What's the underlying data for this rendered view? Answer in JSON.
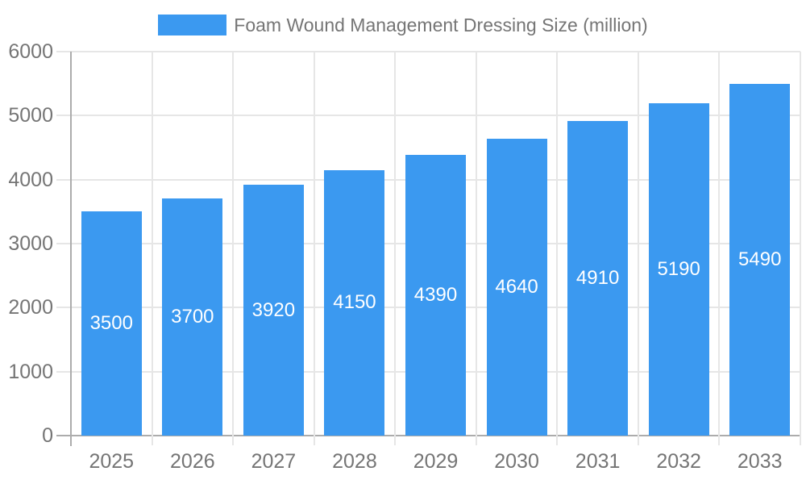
{
  "chart_data": {
    "type": "bar",
    "title": "Foam Wound Management Dressing Size (million)",
    "categories": [
      "2025",
      "2026",
      "2027",
      "2028",
      "2029",
      "2030",
      "2031",
      "2032",
      "2033"
    ],
    "values": [
      3500,
      3700,
      3920,
      4150,
      4390,
      4640,
      4910,
      5190,
      5490
    ],
    "bar_value_labels": [
      "3500",
      "3700",
      "3920",
      "4150",
      "4390",
      "4640",
      "4910",
      "5190",
      "5490"
    ],
    "xlabel": "",
    "ylabel": "",
    "ylim": [
      0,
      6000
    ],
    "yticks": [
      0,
      1000,
      2000,
      3000,
      4000,
      5000,
      6000
    ],
    "ytick_labels": [
      "0",
      "1000",
      "2000",
      "3000",
      "4000",
      "5000",
      "6000"
    ],
    "grid": true,
    "legend_position": "top",
    "bar_labels_inside": true,
    "colors": {
      "bar": "#3B99F0",
      "bar_label_text": "#FFFFFF",
      "axis_text": "#757575",
      "grid_line": "#E6E6E6",
      "axis_line": "#ACACAC",
      "background": "#FFFFFF"
    }
  }
}
